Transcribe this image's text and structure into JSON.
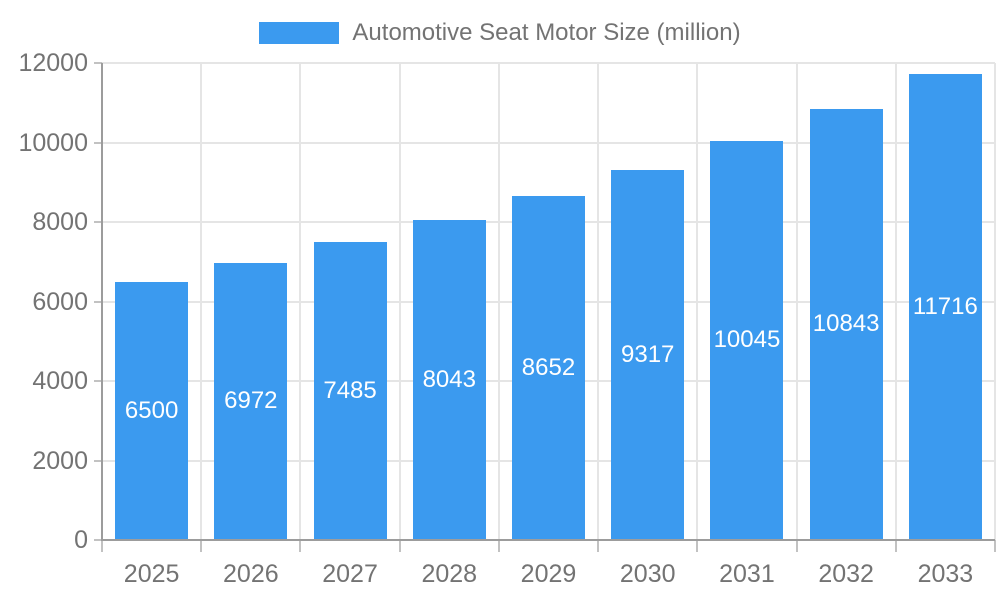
{
  "chart_data": {
    "type": "bar",
    "title": "Automotive Seat Motor Size (million)",
    "categories": [
      "2025",
      "2026",
      "2027",
      "2028",
      "2029",
      "2030",
      "2031",
      "2032",
      "2033"
    ],
    "values": [
      6500,
      6972,
      7485,
      8043,
      8652,
      9317,
      10045,
      10843,
      11716
    ],
    "series": [
      {
        "name": "Automotive Seat Motor Size (million)",
        "values": [
          6500,
          6972,
          7485,
          8043,
          8652,
          9317,
          10045,
          10843,
          11716
        ]
      }
    ],
    "xlabel": "",
    "ylabel": "",
    "ylim": [
      0,
      12000
    ],
    "ytick_step": 2000,
    "y_tick_labels": [
      "0",
      "2000",
      "4000",
      "6000",
      "8000",
      "10000",
      "12000"
    ],
    "grid": true,
    "legend_position": "top-center",
    "value_labels_shown": true,
    "colors": {
      "bar": "#3B9AEF",
      "value_label": "#FFFFFF",
      "axis": "#9C9C9C",
      "grid": "#E5E5E5",
      "tick": "#C2C2C2",
      "text": "#737373",
      "background": "#FFFFFF"
    }
  }
}
